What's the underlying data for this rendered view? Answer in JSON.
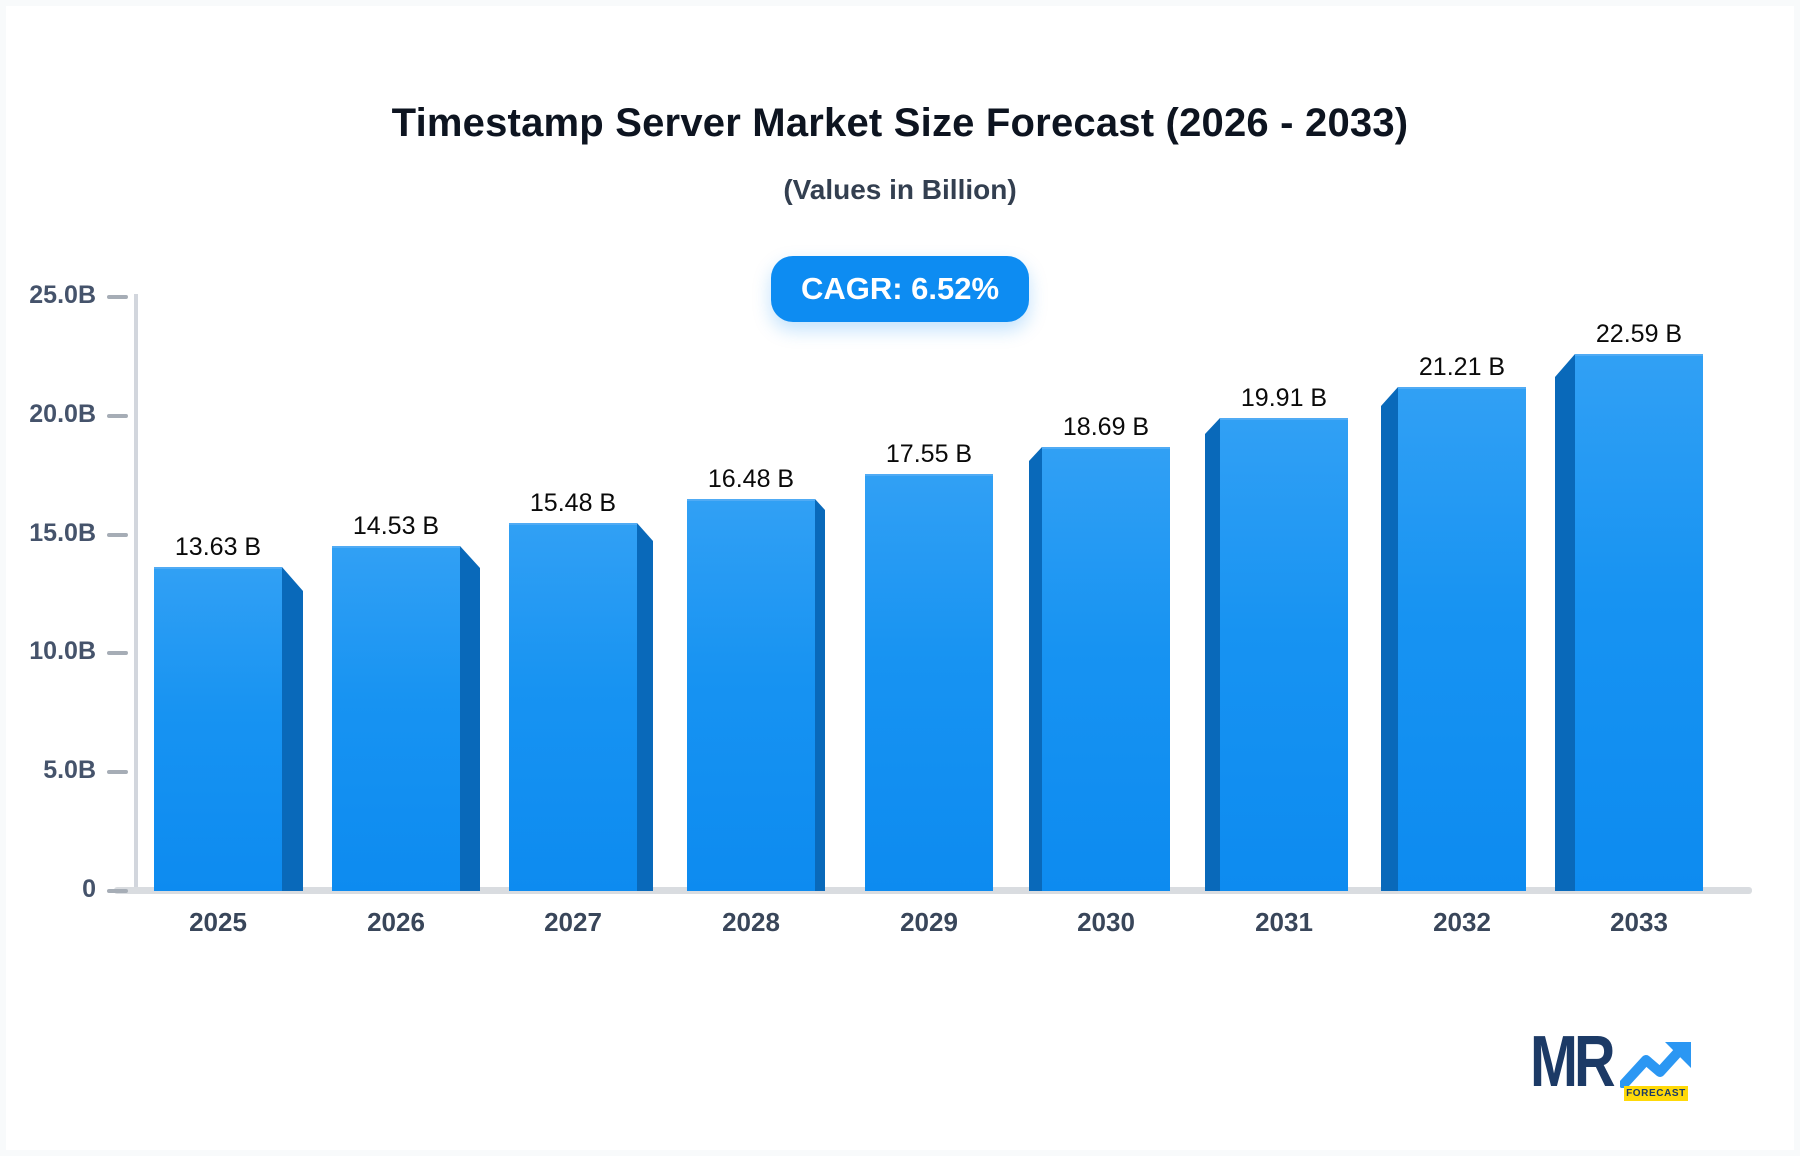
{
  "chart_data": {
    "type": "bar",
    "title": "Timestamp Server Market Size Forecast (2026 - 2033)",
    "subtitle": "(Values in Billion)",
    "annotation": "CAGR: 6.52%",
    "categories": [
      "2025",
      "2026",
      "2027",
      "2028",
      "2029",
      "2030",
      "2031",
      "2032",
      "2033"
    ],
    "values": [
      13.63,
      14.53,
      15.48,
      16.48,
      17.55,
      18.69,
      19.91,
      21.21,
      22.59
    ],
    "value_labels": [
      "13.63 B",
      "14.53 B",
      "15.48 B",
      "16.48 B",
      "17.55 B",
      "18.69 B",
      "19.91 B",
      "21.21 B",
      "22.59 B"
    ],
    "ytick_labels": [
      "25.0B",
      "20.0B",
      "15.0B",
      "10.0B",
      "5.0B",
      "0"
    ],
    "ytick_values": [
      25,
      20,
      15,
      10,
      5,
      0
    ],
    "ylim": [
      0,
      25
    ],
    "xlabel": "",
    "ylabel": "",
    "grid": false,
    "legend": "none",
    "style": "3d-perspective-bars"
  },
  "colors": {
    "bar_front_top": "#31a0f4",
    "bar_front_bottom": "#0d8bf0",
    "bar_side": "#0969ba",
    "badge_bg": "#0d8cf2",
    "axis_line": "#d2d6dd",
    "baseline": "#d9dce0",
    "tick_label": "#45536b",
    "year_label": "#39465a",
    "value_label": "#0a0a0a",
    "logo_navy": "#1c3a66",
    "logo_blue": "#2b97f3",
    "logo_yellow": "#ffd908"
  },
  "logo": {
    "mr": "MR",
    "forecast": "FORECAST"
  }
}
